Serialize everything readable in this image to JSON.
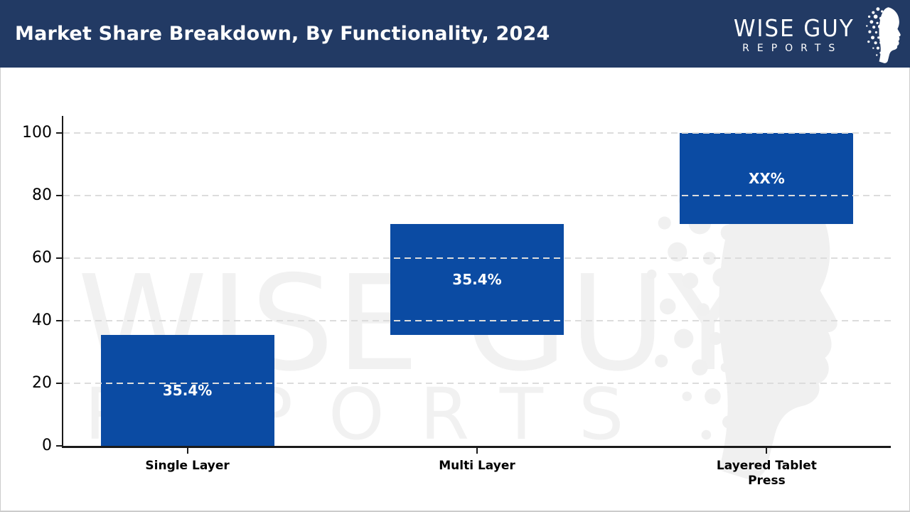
{
  "header": {
    "title": "Market Share Breakdown, By Functionality, 2024",
    "logo": {
      "line1": "WISE GUY",
      "line2": "REPORTS"
    }
  },
  "watermark": {
    "line1": "WISE GUY",
    "line2": "REPORTS"
  },
  "colors": {
    "header_bg": "#223a64",
    "bar": "#0b4ba3",
    "bar_label": "#ffffff",
    "gridline": "#dcdcdc",
    "axis": "#1a1a1a",
    "watermark": "#f1f1f1"
  },
  "chart_data": {
    "type": "bar",
    "subtype": "stacked-waterfall",
    "title": "Market Share Breakdown, By Functionality, 2024",
    "categories": [
      "Single Layer",
      "Multi Layer",
      "Layered Tablet Press"
    ],
    "segments": [
      {
        "category": "Single Layer",
        "start": 0,
        "end": 35.4,
        "label": "35.4%"
      },
      {
        "category": "Multi Layer",
        "start": 35.4,
        "end": 70.8,
        "label": "35.4%"
      },
      {
        "category": "Layered Tablet Press",
        "start": 70.8,
        "end": 100,
        "label": "XX%"
      }
    ],
    "yticks": [
      0,
      20,
      40,
      60,
      80,
      100
    ],
    "ylim": [
      0,
      105.45
    ],
    "xlabel": "",
    "ylabel": "",
    "grid": "horizontal-dashed",
    "legend": "none"
  }
}
